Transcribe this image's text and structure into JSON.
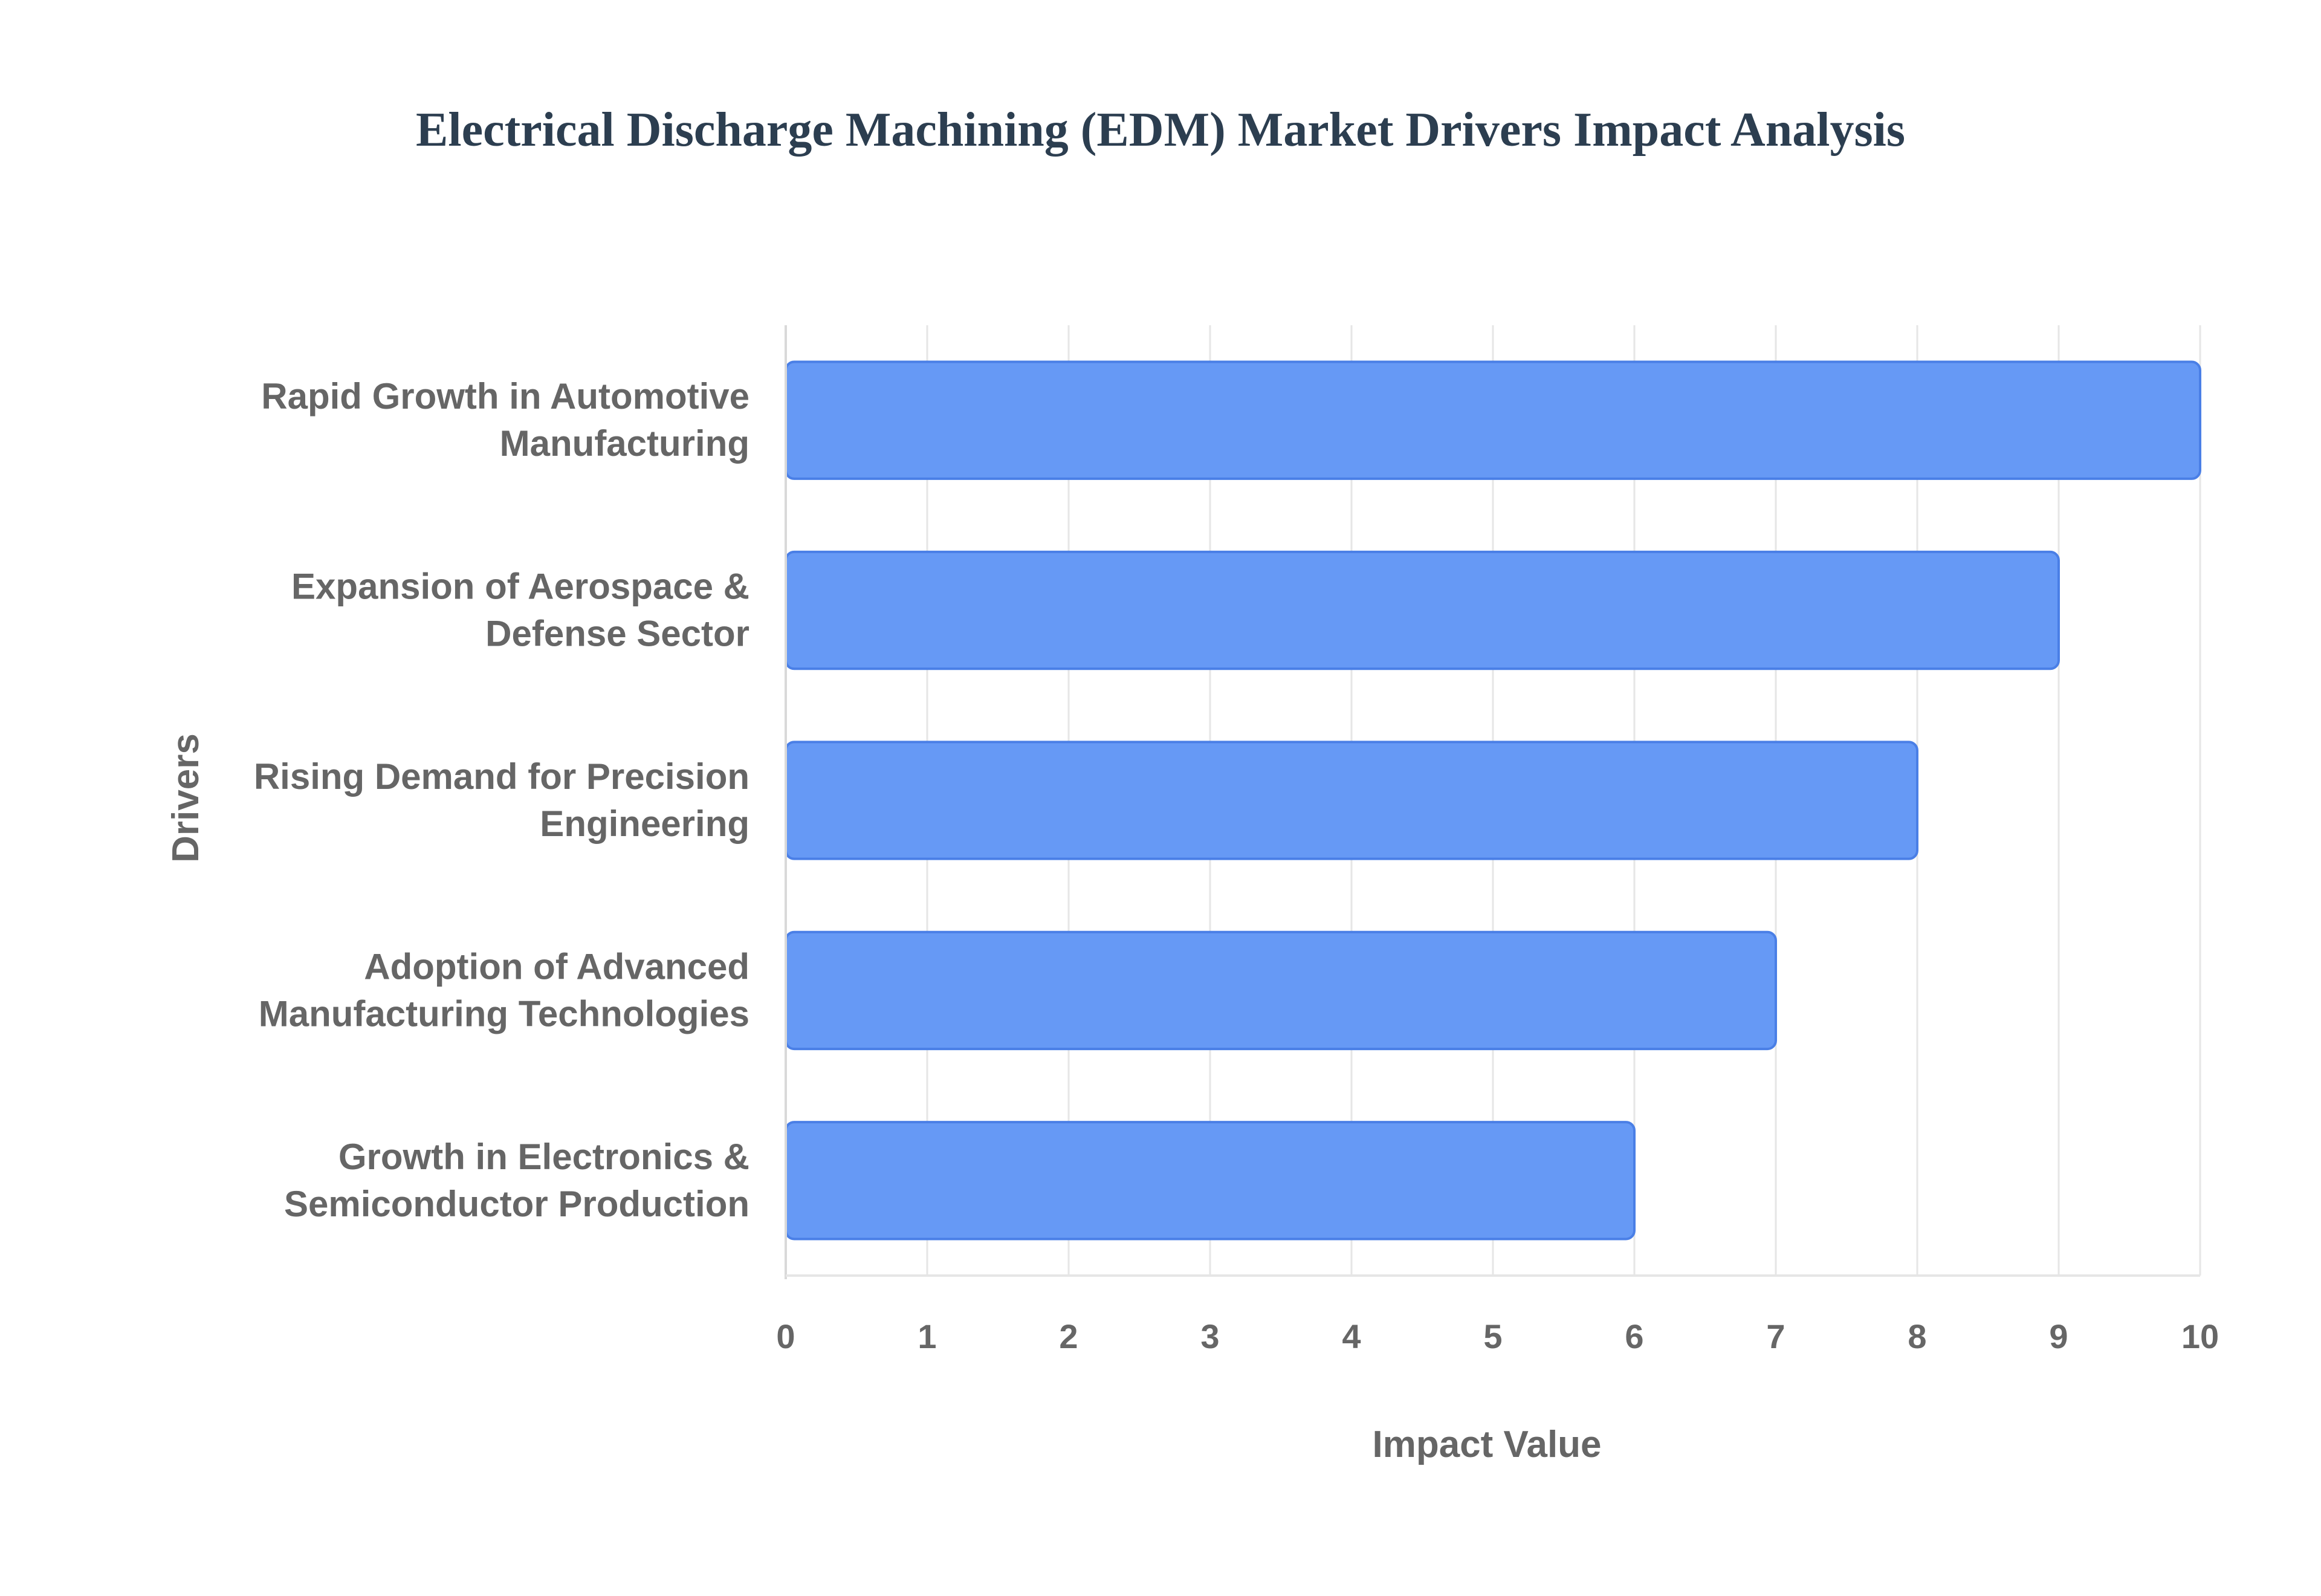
{
  "chart_data": {
    "type": "bar",
    "orientation": "horizontal",
    "title": "Electrical Discharge Machining (EDM) Market Drivers Impact Analysis",
    "xlabel": "Impact Value",
    "ylabel": "Drivers",
    "xlim": [
      0,
      10
    ],
    "x_ticks": [
      "0",
      "1",
      "2",
      "3",
      "4",
      "5",
      "6",
      "7",
      "8",
      "9",
      "10"
    ],
    "grid": true,
    "bar_color": "#6699f5",
    "bar_border_color": "#4a7fe6",
    "categories": [
      [
        "Rapid Growth in Automotive",
        "Manufacturing"
      ],
      [
        "Expansion of Aerospace &",
        "Defense Sector"
      ],
      [
        "Rising Demand for Precision",
        "Engineering"
      ],
      [
        "Adoption of Advanced",
        "Manufacturing Technologies"
      ],
      [
        "Growth in Electronics &",
        "Semiconductor Production"
      ]
    ],
    "values": [
      10,
      9,
      8,
      7,
      6
    ]
  }
}
